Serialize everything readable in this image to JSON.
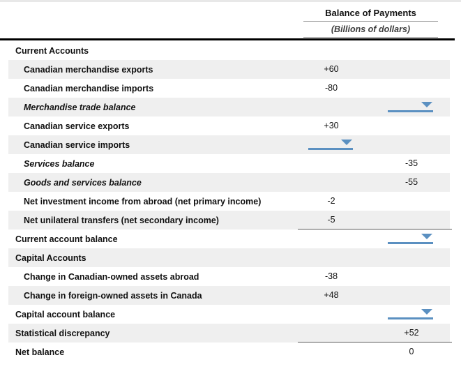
{
  "header": {
    "title": "Balance of Payments",
    "subtitle": "(Billions of dollars)"
  },
  "table": {
    "rows": [
      {
        "label": "Current Accounts",
        "indent": 0,
        "italic": false,
        "shaded": false,
        "col1": null,
        "col2": null,
        "dropdown": null,
        "topline": false
      },
      {
        "label": "Canadian merchandise exports",
        "indent": 1,
        "italic": false,
        "shaded": true,
        "col1": "+60",
        "col2": null,
        "dropdown": null,
        "topline": false
      },
      {
        "label": "Canadian merchandise imports",
        "indent": 1,
        "italic": false,
        "shaded": false,
        "col1": "-80",
        "col2": null,
        "dropdown": null,
        "topline": false
      },
      {
        "label": "Merchandise trade balance",
        "indent": 1,
        "italic": true,
        "shaded": true,
        "col1": null,
        "col2": null,
        "dropdown": 2,
        "topline": false
      },
      {
        "label": "Canadian service exports",
        "indent": 1,
        "italic": false,
        "shaded": false,
        "col1": "+30",
        "col2": null,
        "dropdown": null,
        "topline": false
      },
      {
        "label": "Canadian service imports",
        "indent": 1,
        "italic": false,
        "shaded": true,
        "col1": null,
        "col2": null,
        "dropdown": 1,
        "topline": false
      },
      {
        "label": "Services balance",
        "indent": 1,
        "italic": true,
        "shaded": false,
        "col1": null,
        "col2": "-35",
        "dropdown": null,
        "topline": false
      },
      {
        "label": "Goods and services balance",
        "indent": 1,
        "italic": true,
        "shaded": true,
        "col1": null,
        "col2": "-55",
        "dropdown": null,
        "topline": false
      },
      {
        "label": "Net investment income from abroad (net primary income)",
        "indent": 1,
        "italic": false,
        "shaded": false,
        "col1": "-2",
        "col2": null,
        "dropdown": null,
        "topline": false
      },
      {
        "label": "Net unilateral transfers (net secondary income)",
        "indent": 1,
        "italic": false,
        "shaded": true,
        "col1": "-5",
        "col2": null,
        "dropdown": null,
        "topline": false
      },
      {
        "label": "Current account balance",
        "indent": 0,
        "italic": false,
        "shaded": false,
        "col1": null,
        "col2": null,
        "dropdown": 2,
        "topline": true
      },
      {
        "label": "Capital Accounts",
        "indent": 0,
        "italic": false,
        "shaded": true,
        "col1": null,
        "col2": null,
        "dropdown": null,
        "topline": false
      },
      {
        "label": "Change in Canadian-owned assets abroad",
        "indent": 1,
        "italic": false,
        "shaded": false,
        "col1": "-38",
        "col2": null,
        "dropdown": null,
        "topline": false
      },
      {
        "label": "Change in foreign-owned assets in Canada",
        "indent": 1,
        "italic": false,
        "shaded": true,
        "col1": "+48",
        "col2": null,
        "dropdown": null,
        "topline": false
      },
      {
        "label": "Capital account balance",
        "indent": 0,
        "italic": false,
        "shaded": false,
        "col1": null,
        "col2": null,
        "dropdown": 2,
        "topline": false
      },
      {
        "label": "Statistical discrepancy",
        "indent": 0,
        "italic": false,
        "shaded": true,
        "col1": null,
        "col2": "+52",
        "dropdown": null,
        "topline": false
      },
      {
        "label": "Net balance",
        "indent": 0,
        "italic": false,
        "shaded": false,
        "col1": null,
        "col2": "0",
        "dropdown": null,
        "topline": true
      }
    ]
  },
  "colors": {
    "accent_blue": "#5b90c1",
    "stripe_gray": "#efefef",
    "sum_line": "#5a5a5a",
    "thick_line": "#000000"
  },
  "icons": {
    "dropdown_icon": "chevron-down-icon"
  }
}
